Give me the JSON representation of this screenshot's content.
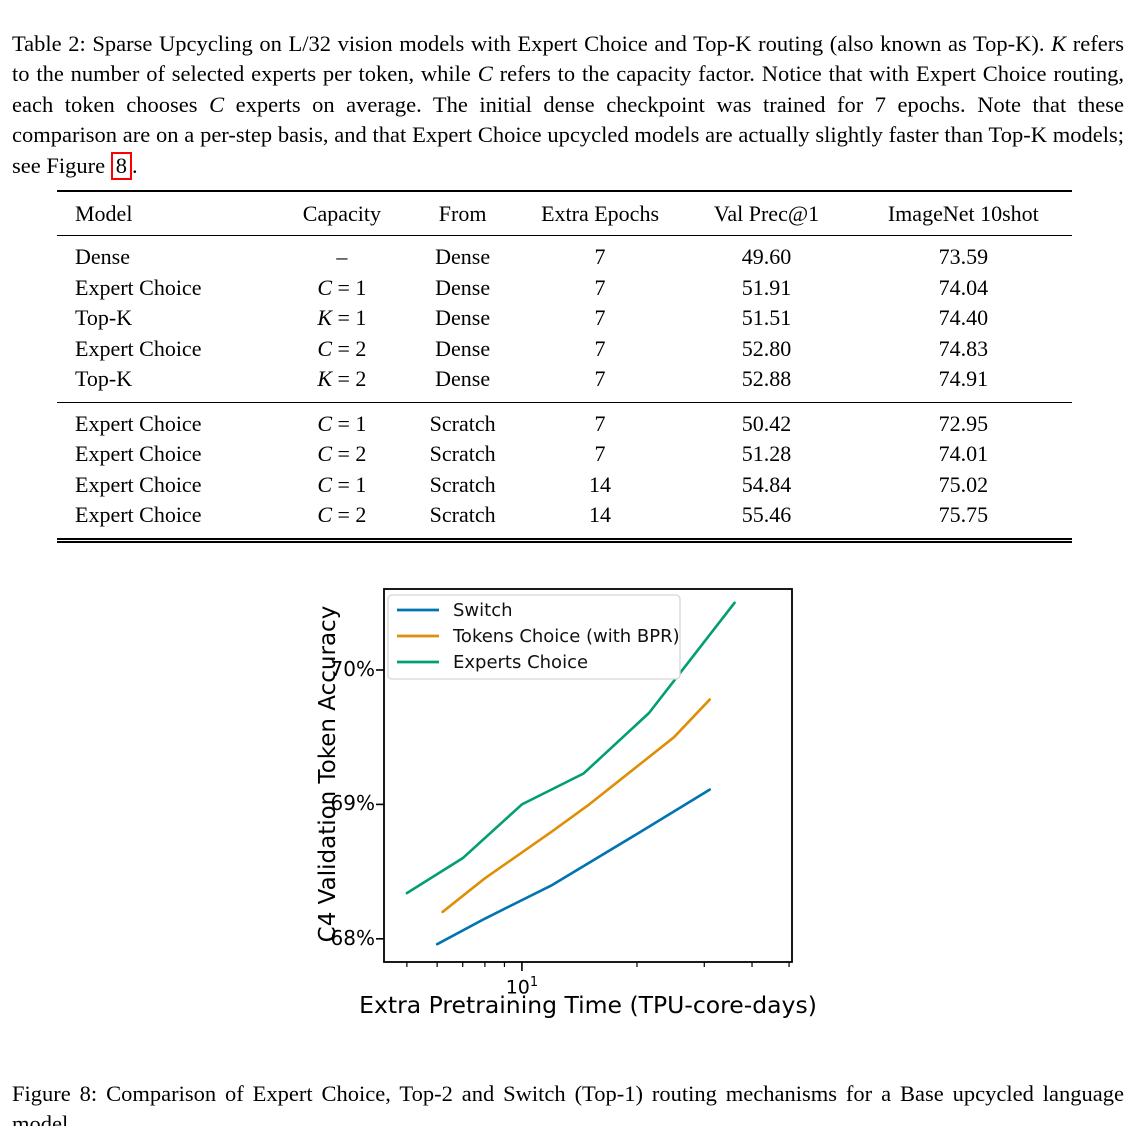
{
  "table_caption_segments": [
    {
      "t": "Table 2: Sparse Upcycling on L/32 vision models with Expert Choice and Top-K routing (also known as Top-K). "
    },
    {
      "t": "K",
      "style": "math"
    },
    {
      "t": " refers to the number of selected experts per token, while "
    },
    {
      "t": "C",
      "style": "math"
    },
    {
      "t": " refers to the capacity factor. Notice that with Expert Choice routing, each token chooses "
    },
    {
      "t": "C",
      "style": "math"
    },
    {
      "t": " experts on average. The initial dense checkpoint was trained for 7 epochs. Note that these comparison are on a per-step basis, and that Expert Choice upcycled models are actually slightly faster than Top-K models; see Figure "
    },
    {
      "t": "8",
      "style": "figref"
    },
    {
      "t": "."
    }
  ],
  "figref_box_color": "#ff0000",
  "table": {
    "headers": [
      "Model",
      "Capacity",
      "From",
      "Extra Epochs",
      "Val Prec@1",
      "ImageNet 10shot"
    ],
    "groups": [
      {
        "rows": [
          [
            "Dense",
            "–",
            "Dense",
            "7",
            "49.60",
            "73.59"
          ],
          [
            "Expert Choice",
            "C = 1",
            "Dense",
            "7",
            "51.91",
            "74.04"
          ],
          [
            "Top-K",
            "K = 1",
            "Dense",
            "7",
            "51.51",
            "74.40"
          ],
          [
            "Expert Choice",
            "C = 2",
            "Dense",
            "7",
            "52.80",
            "74.83"
          ],
          [
            "Top-K",
            "K = 2",
            "Dense",
            "7",
            "52.88",
            "74.91"
          ]
        ]
      },
      {
        "rows": [
          [
            "Expert Choice",
            "C = 1",
            "Scratch",
            "7",
            "50.42",
            "72.95"
          ],
          [
            "Expert Choice",
            "C = 2",
            "Scratch",
            "7",
            "51.28",
            "74.01"
          ],
          [
            "Expert Choice",
            "C = 1",
            "Scratch",
            "14",
            "54.84",
            "75.02"
          ],
          [
            "Expert Choice",
            "C = 2",
            "Scratch",
            "14",
            "55.46",
            "75.75"
          ]
        ]
      }
    ]
  },
  "chart_data": {
    "type": "line",
    "xlabel": "Extra Pretraining Time (TPU-core-days)",
    "ylabel": "C4 Validation Token Accuracy",
    "xscale": "log",
    "xlim": [
      4.33,
      51.2
    ],
    "ylim": [
      67.82,
      70.61
    ],
    "grid": false,
    "legend_position": "upper left",
    "yticks": [
      {
        "value": 68,
        "label": "68%"
      },
      {
        "value": 69,
        "label": "69%"
      },
      {
        "value": 70,
        "label": "70%"
      }
    ],
    "xticks_major": [
      {
        "value": 10,
        "base": "10",
        "exp": "1"
      }
    ],
    "xticks_minor": [
      5,
      6,
      7,
      8,
      9,
      20,
      30,
      40,
      50
    ],
    "series": [
      {
        "name": "Switch",
        "color": "#0173b2",
        "points": [
          [
            6.0,
            67.96
          ],
          [
            8,
            68.15
          ],
          [
            12,
            68.4
          ],
          [
            20,
            68.78
          ],
          [
            31,
            69.11
          ]
        ]
      },
      {
        "name": "Tokens Choice (with BPR)",
        "color": "#de8f05",
        "points": [
          [
            6.2,
            68.2
          ],
          [
            8,
            68.45
          ],
          [
            12,
            68.8
          ],
          [
            15,
            69.0
          ],
          [
            25,
            69.5
          ],
          [
            31,
            69.78
          ]
        ]
      },
      {
        "name": "Experts Choice",
        "color": "#029e73",
        "points": [
          [
            5.0,
            68.34
          ],
          [
            7,
            68.6
          ],
          [
            10,
            69.0
          ],
          [
            14.5,
            69.23
          ],
          [
            21.5,
            69.68
          ],
          [
            28,
            70.1
          ],
          [
            36,
            70.5
          ]
        ]
      }
    ]
  },
  "figure_caption_segments": [
    {
      "t": "Figure 8: Comparison of Expert Choice, Top-2 and Switch (Top-1) routing mechanisms for a Base upcycled language model."
    }
  ]
}
